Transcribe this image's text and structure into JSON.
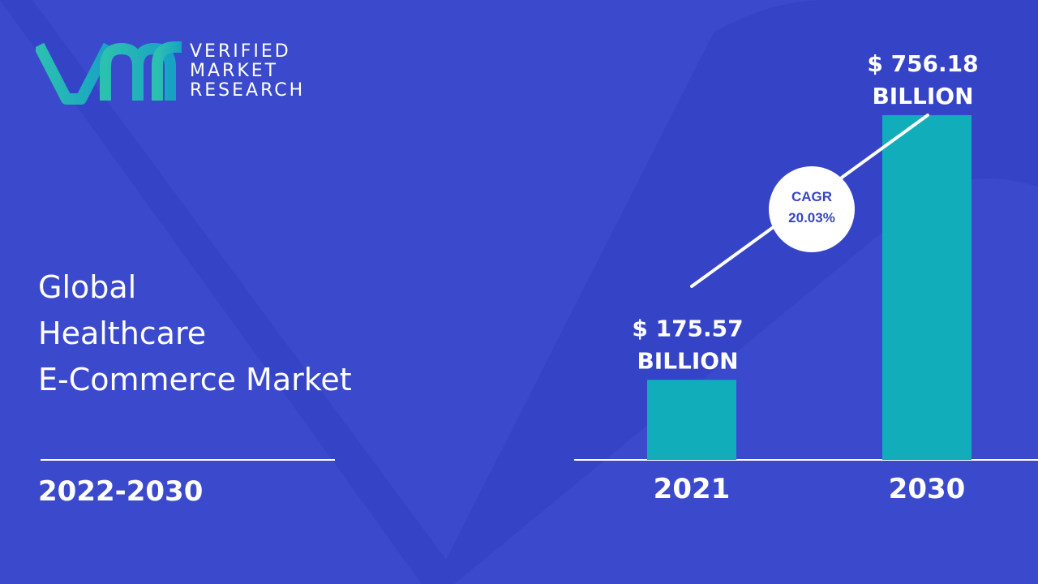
{
  "brand": {
    "line1": "VERIFIED",
    "line2": "MARKET",
    "line3": "RESEARCH",
    "mark": "vmr",
    "colors": {
      "mark_gradient_start": "#2bb5b5",
      "mark_gradient_end": "#1aa3c2"
    }
  },
  "title_lines": [
    "Global",
    "Healthcare",
    "E-Commerce Market"
  ],
  "period": "2022-2030",
  "colors": {
    "background": "#3b49cc",
    "background_shape": "#3341c0",
    "bar": "#12adbb",
    "text": "#ffffff",
    "cagr_text": "#3845c4"
  },
  "chart_data": {
    "type": "bar",
    "categories": [
      "2021",
      "2030"
    ],
    "values": [
      175.57,
      756.18
    ],
    "value_labels": [
      [
        "$ 175.57",
        "BILLION"
      ],
      [
        "$ 756.18",
        "BILLION"
      ]
    ],
    "cagr_label": "CAGR",
    "cagr_value": "20.03%",
    "title": "",
    "xlabel": "",
    "ylabel": "",
    "ylim": [
      0,
      756.18
    ],
    "grid": false,
    "legend": "none"
  }
}
